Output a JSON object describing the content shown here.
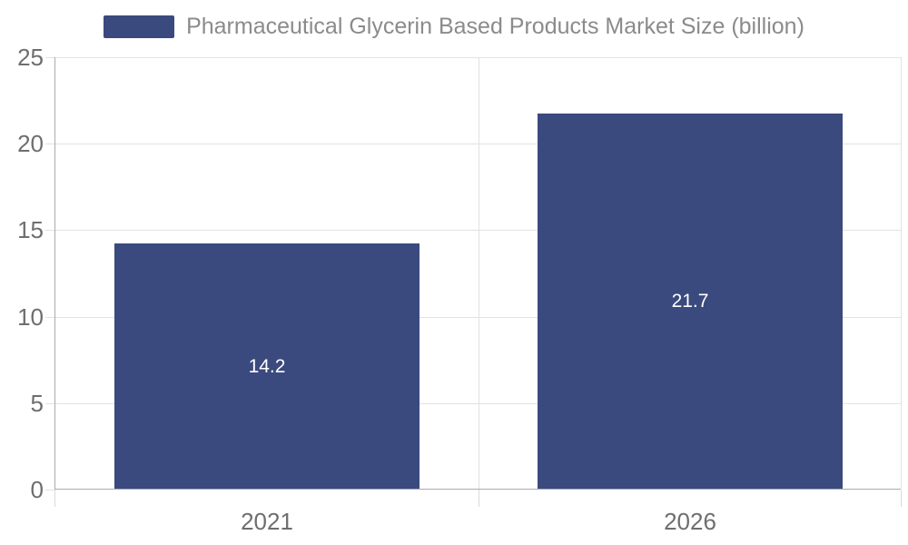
{
  "chart_data": {
    "type": "bar",
    "title": "Pharmaceutical Glycerin Based Products Market Size (billion)",
    "categories": [
      "2021",
      "2026"
    ],
    "series": [
      {
        "name": "Pharmaceutical Glycerin Based Products Market Size (billion)",
        "values": [
          14.2,
          21.7
        ]
      }
    ],
    "data_labels": [
      "14.2",
      "21.7"
    ],
    "xlabel": "",
    "ylabel": "",
    "ylim": [
      0,
      25
    ],
    "yticks": [
      0,
      5,
      10,
      15,
      20,
      25
    ],
    "grid": true,
    "legend_position": "top",
    "data_label_position": "inside-center",
    "colors": {
      "bar": "#3A4A7E",
      "legend_text": "#8B8B8B",
      "axis_label": "#6E6E6E",
      "gridline": "#E2E2E2",
      "axis_line": "#ABABAB",
      "tick": "#D9D9D9",
      "data_label": "#FFFFFF"
    }
  }
}
